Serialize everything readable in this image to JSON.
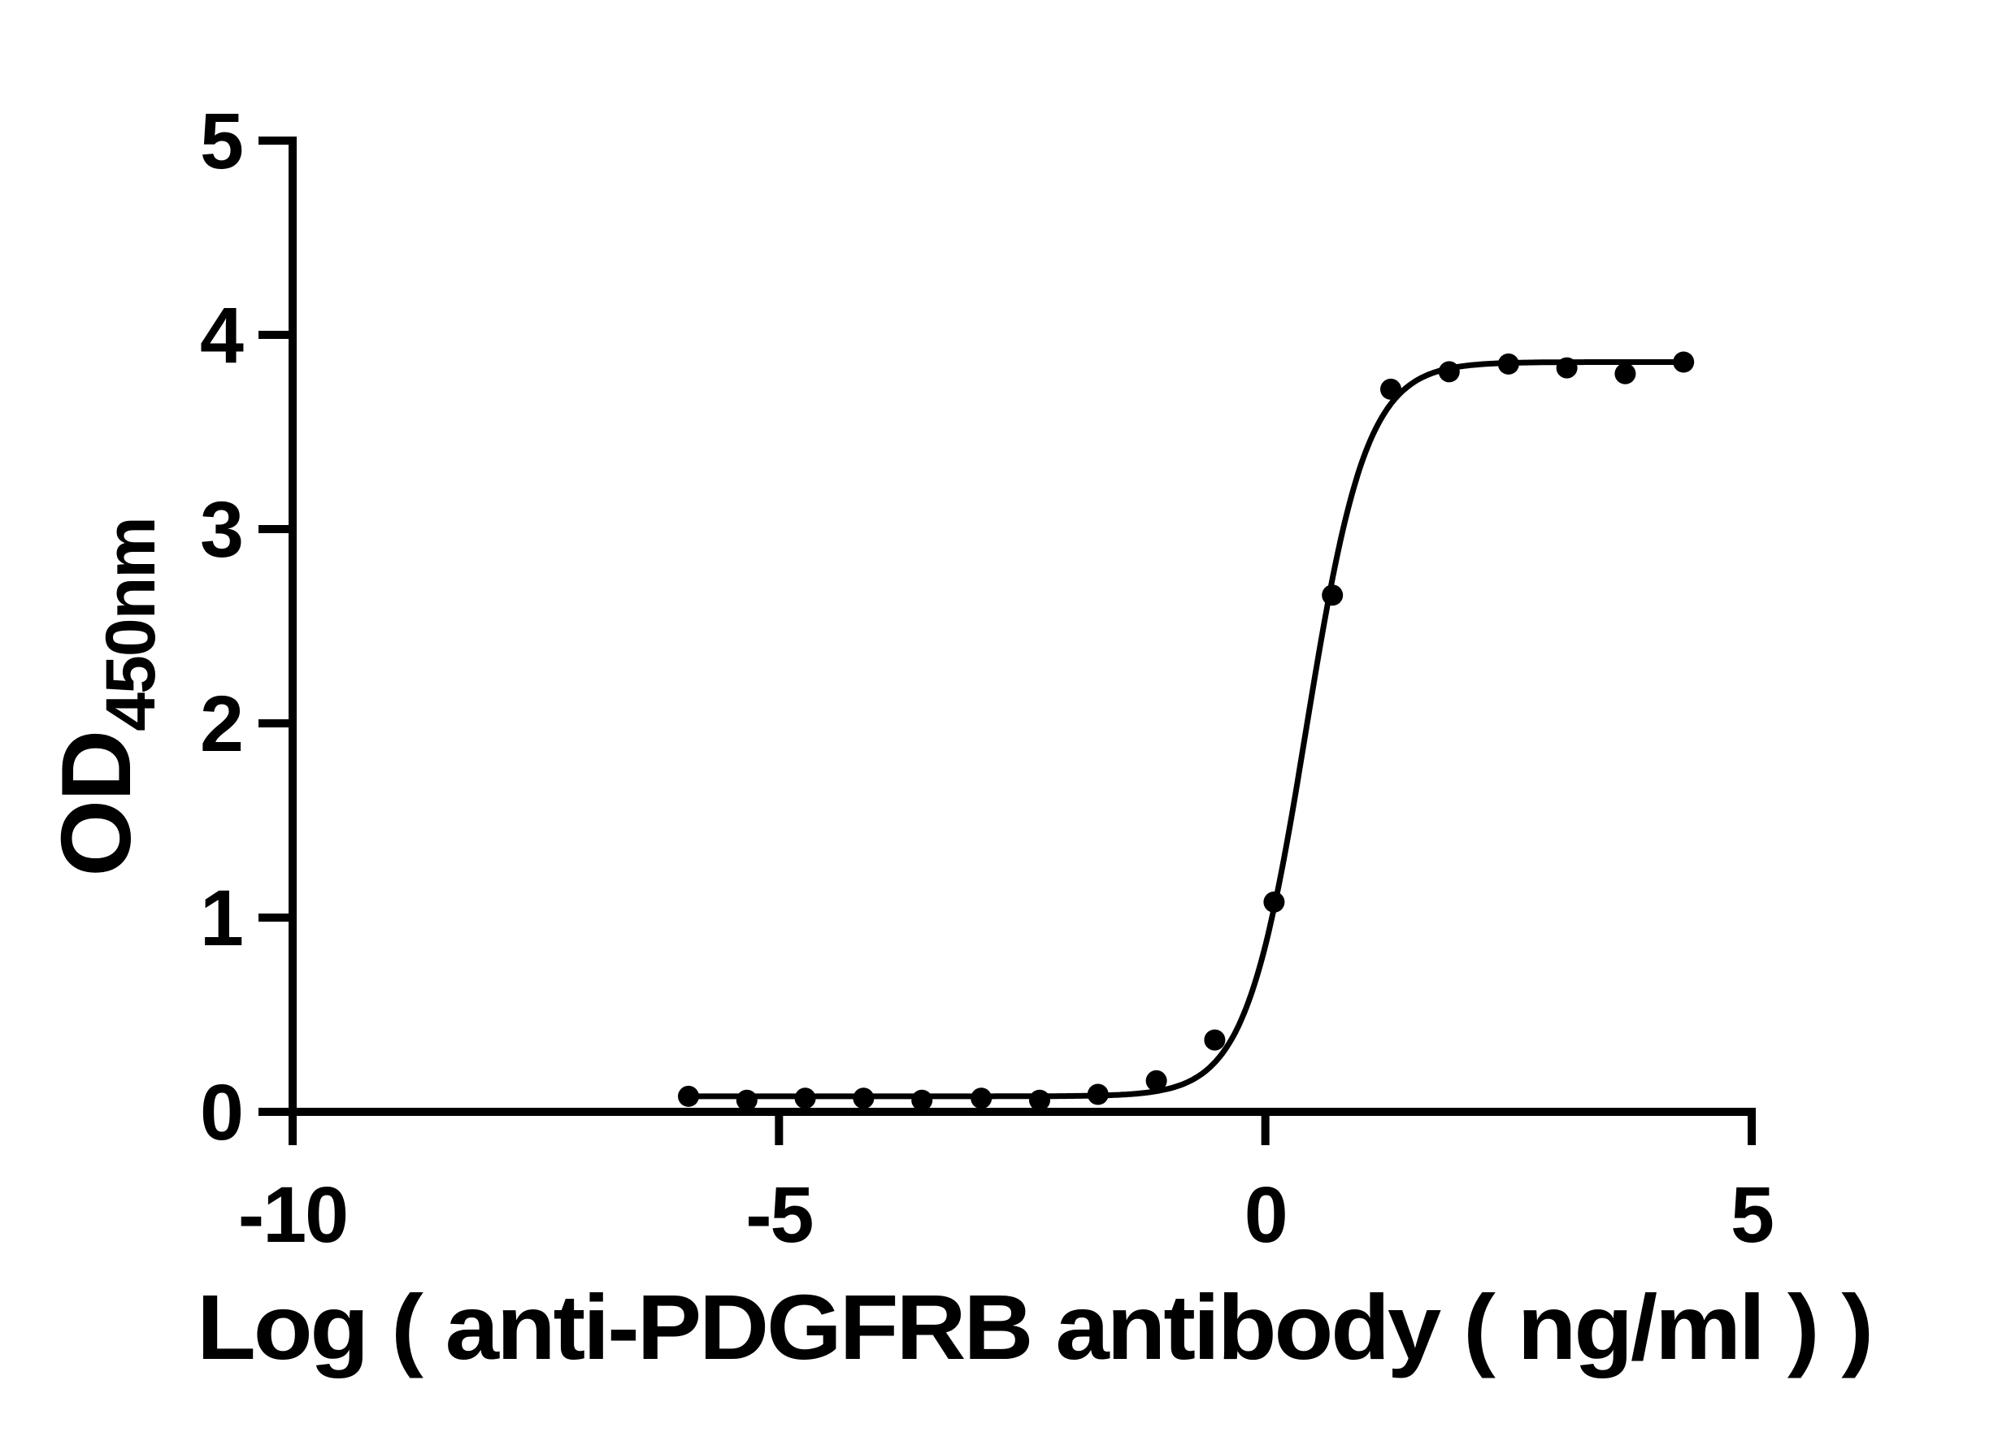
{
  "figure": {
    "background_color": "#ffffff",
    "ink_color": "#000000"
  },
  "chart_data": {
    "type": "scatter",
    "title": "",
    "xlabel": "Log ( anti-PDGFRB antibody ( ng/ml )   )",
    "ylabel_main": "OD",
    "ylabel_subscript": "450nm",
    "xlim": [
      -10,
      5
    ],
    "ylim": [
      0,
      5
    ],
    "x_ticks": [
      -10,
      -5,
      0,
      5
    ],
    "x_tick_labels": [
      "-10",
      "-5",
      "0",
      "5"
    ],
    "y_ticks": [
      0,
      1,
      2,
      3,
      4,
      5
    ],
    "y_tick_labels": [
      "0",
      "1",
      "2",
      "3",
      "4",
      "5"
    ],
    "grid": false,
    "legend_position": "none",
    "marker": "filled-circle",
    "marker_color": "#000000",
    "curve_color": "#000000",
    "points": [
      {
        "x": -5.93,
        "y": 0.08
      },
      {
        "x": -5.33,
        "y": 0.06
      },
      {
        "x": -4.73,
        "y": 0.07
      },
      {
        "x": -4.13,
        "y": 0.07
      },
      {
        "x": -3.53,
        "y": 0.06
      },
      {
        "x": -2.92,
        "y": 0.07
      },
      {
        "x": -2.32,
        "y": 0.06
      },
      {
        "x": -1.72,
        "y": 0.09
      },
      {
        "x": -1.12,
        "y": 0.16
      },
      {
        "x": -0.52,
        "y": 0.37
      },
      {
        "x": 0.09,
        "y": 1.08
      },
      {
        "x": 0.69,
        "y": 2.66
      },
      {
        "x": 1.29,
        "y": 3.72
      },
      {
        "x": 1.89,
        "y": 3.81
      },
      {
        "x": 2.5,
        "y": 3.85
      },
      {
        "x": 3.1,
        "y": 3.83
      },
      {
        "x": 3.7,
        "y": 3.8
      },
      {
        "x": 4.3,
        "y": 3.86
      }
    ],
    "fit_curve": {
      "model": "4PL",
      "bottom": 0.08,
      "top": 3.86,
      "log_ec50": 0.42,
      "hill_slope": 1.4,
      "x_start": -5.93,
      "x_end": 4.3
    }
  }
}
